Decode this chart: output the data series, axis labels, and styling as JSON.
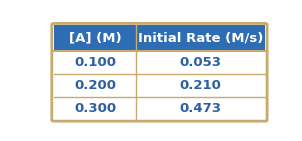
{
  "col_headers": [
    "[A] (M)",
    "Initial Rate (M/s)"
  ],
  "rows": [
    [
      "0.100",
      "0.053"
    ],
    [
      "0.200",
      "0.210"
    ],
    [
      "0.300",
      "0.473"
    ]
  ],
  "header_bg": "#2E6DB4",
  "header_text_color": "#FFFFFF",
  "cell_text_color": "#2E5FA3",
  "divider_color": "#C8A96E",
  "bg_color": "#FFFFFF",
  "header_fontsize": 9.5,
  "cell_fontsize": 9.5,
  "fig_width": 3.02,
  "fig_height": 1.41
}
